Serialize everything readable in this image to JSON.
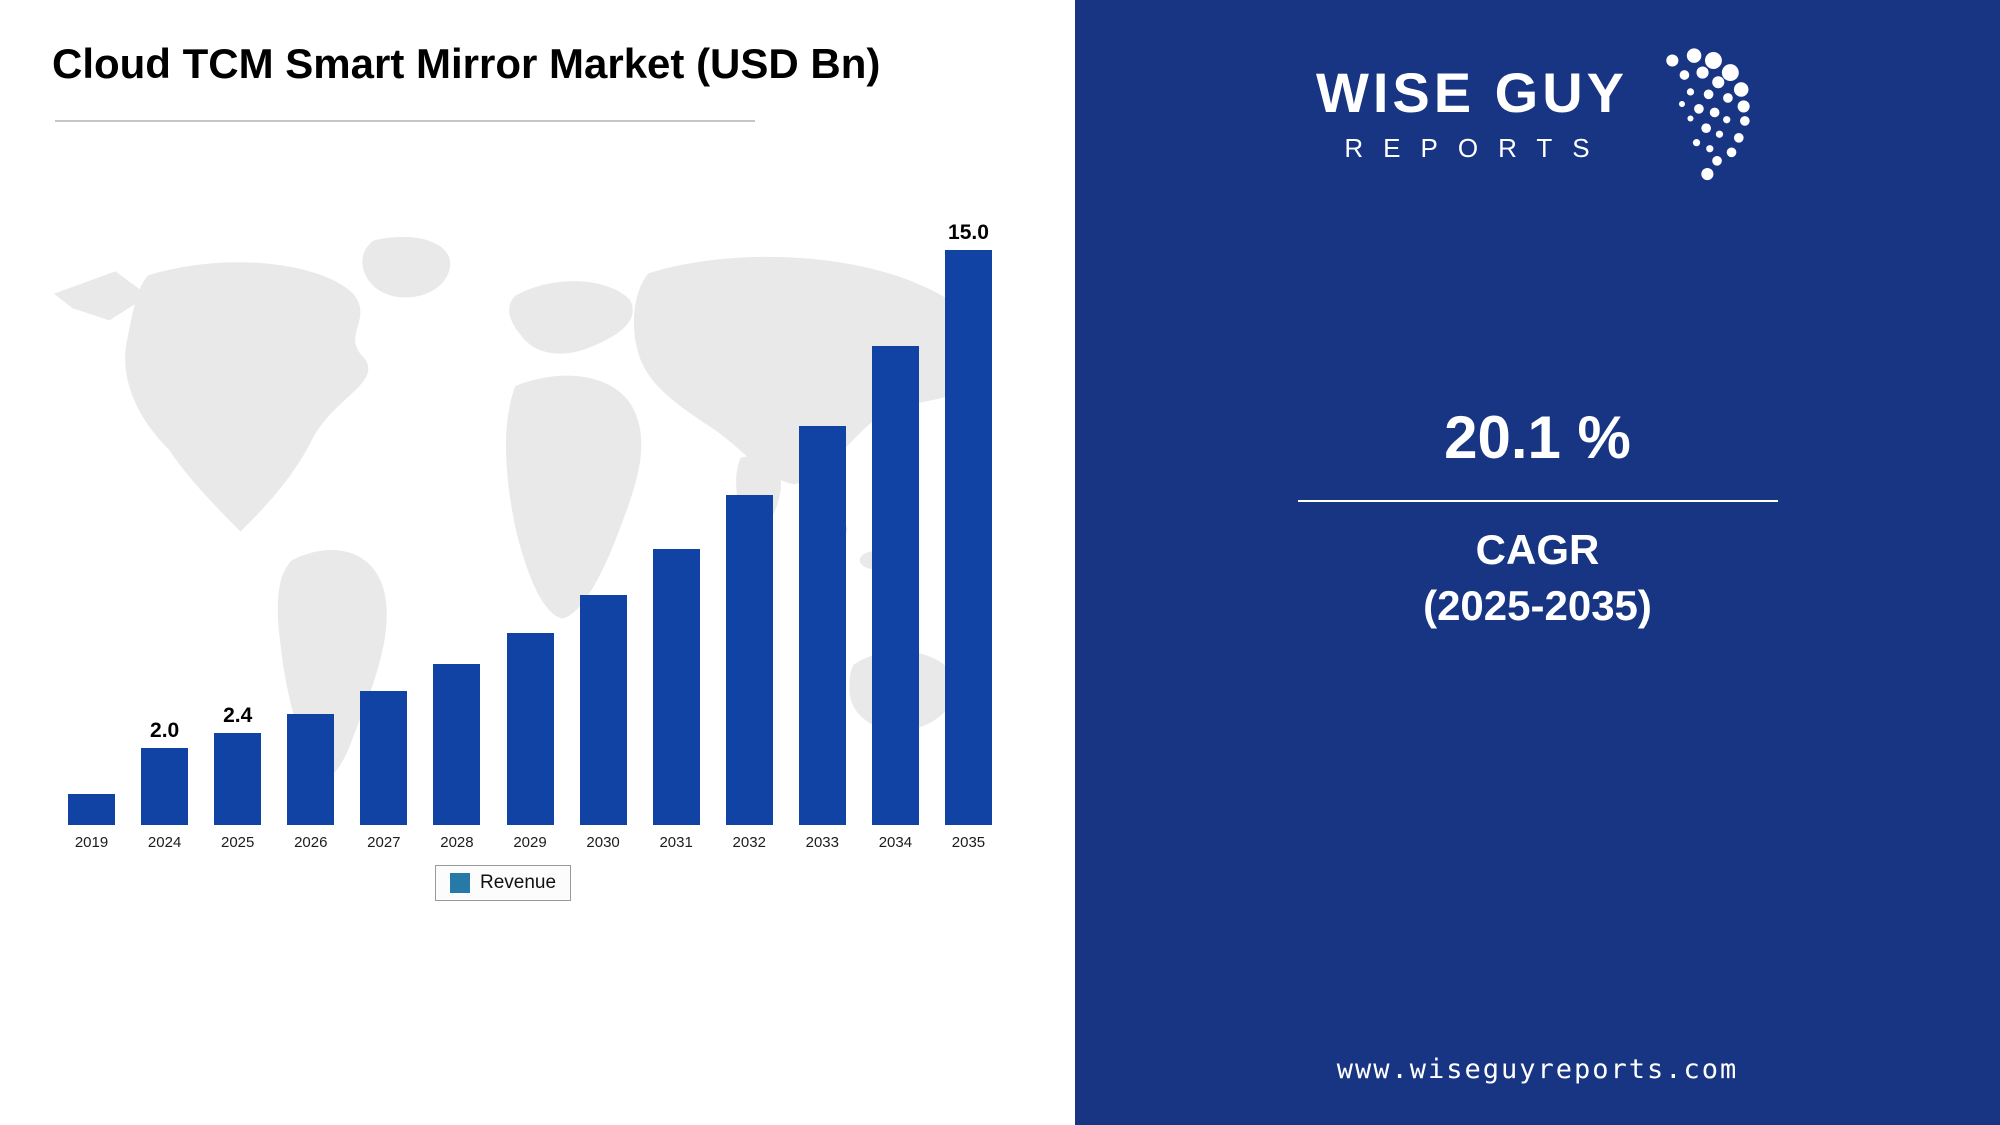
{
  "title": "Cloud TCM Smart Mirror Market (USD Bn)",
  "chart_data": {
    "type": "bar",
    "title": "Cloud TCM Smart Mirror Market (USD Bn)",
    "categories": [
      "2019",
      "2024",
      "2025",
      "2026",
      "2027",
      "2028",
      "2029",
      "2030",
      "2031",
      "2032",
      "2033",
      "2034",
      "2035"
    ],
    "values": [
      0.8,
      2.0,
      2.4,
      2.9,
      3.5,
      4.2,
      5.0,
      6.0,
      7.2,
      8.6,
      10.4,
      12.5,
      15.0
    ],
    "point_labels": [
      "",
      "2.0",
      "2.4",
      "",
      "",
      "",
      "",
      "",
      "",
      "",
      "",
      "",
      "15.0"
    ],
    "xlabel": "",
    "ylabel": "",
    "ylim": [
      0,
      15
    ],
    "grid": false,
    "legend_position": "bottom",
    "legend_entries": [
      "Revenue"
    ],
    "bar_color": "#1143a5"
  },
  "legend": {
    "label": "Revenue",
    "swatch_color": "#2779a7"
  },
  "sidebar": {
    "bg_color": "#183584",
    "logo_line1": "WISE GUY",
    "logo_line2": "REPORTS",
    "cagr_value": "20.1 %",
    "cagr_label": "CAGR",
    "cagr_period": "(2025-2035)",
    "website": "www.wiseguyreports.com"
  }
}
